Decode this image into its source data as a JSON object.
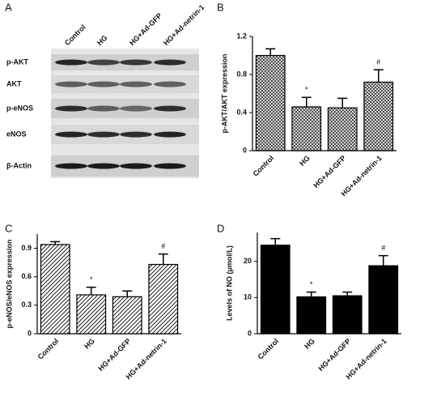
{
  "blot": {
    "panel": "A",
    "lanes": [
      "Control",
      "HG",
      "HG+Ad-GFP",
      "HG+Ad-netrin-1"
    ],
    "rows": [
      "p-AKT",
      "AKT",
      "p-eNOS",
      "eNOS",
      "β-Actin"
    ]
  },
  "chart_data": [
    {
      "type": "bar",
      "panel": "B",
      "ylabel": "p-AKT/AKT expression",
      "categories": [
        "Control",
        "HG",
        "HG+Ad-GFP",
        "HG+Ad-netrin-1"
      ],
      "values": [
        1.0,
        0.46,
        0.45,
        0.72
      ],
      "errors": [
        0.07,
        0.1,
        0.1,
        0.13
      ],
      "annotations": [
        null,
        "*",
        null,
        "#"
      ],
      "color": "#000000",
      "pattern": "crosshatch",
      "ylim": [
        0,
        1.2
      ],
      "yticks": [
        0,
        0.4,
        0.8,
        1.2
      ]
    },
    {
      "type": "bar",
      "panel": "C",
      "ylabel": "p-eNOS/eNOS expression",
      "categories": [
        "Control",
        "HG",
        "HG+Ad-GFP",
        "HG+Ad-netrin-1"
      ],
      "values": [
        0.94,
        0.41,
        0.39,
        0.73
      ],
      "errors": [
        0.03,
        0.08,
        0.06,
        0.11
      ],
      "annotations": [
        null,
        "*",
        null,
        "#"
      ],
      "color": "#000000",
      "pattern": "hatch",
      "ylim": [
        0,
        1.05
      ],
      "yticks": [
        0,
        0.3,
        0.6,
        0.9
      ]
    },
    {
      "type": "bar",
      "panel": "D",
      "ylabel": "Levels of NO (μmol/L)",
      "categories": [
        "Control",
        "HG",
        "HG+Ad-GFP",
        "HG+Ad-netrin-1"
      ],
      "values": [
        24.5,
        10.2,
        10.5,
        18.8
      ],
      "errors": [
        1.8,
        1.3,
        1.0,
        2.8
      ],
      "annotations": [
        null,
        "*",
        null,
        "#"
      ],
      "color": "#000000",
      "pattern": "solid",
      "ylim": [
        0,
        28
      ],
      "yticks": [
        0,
        10,
        20
      ]
    }
  ]
}
